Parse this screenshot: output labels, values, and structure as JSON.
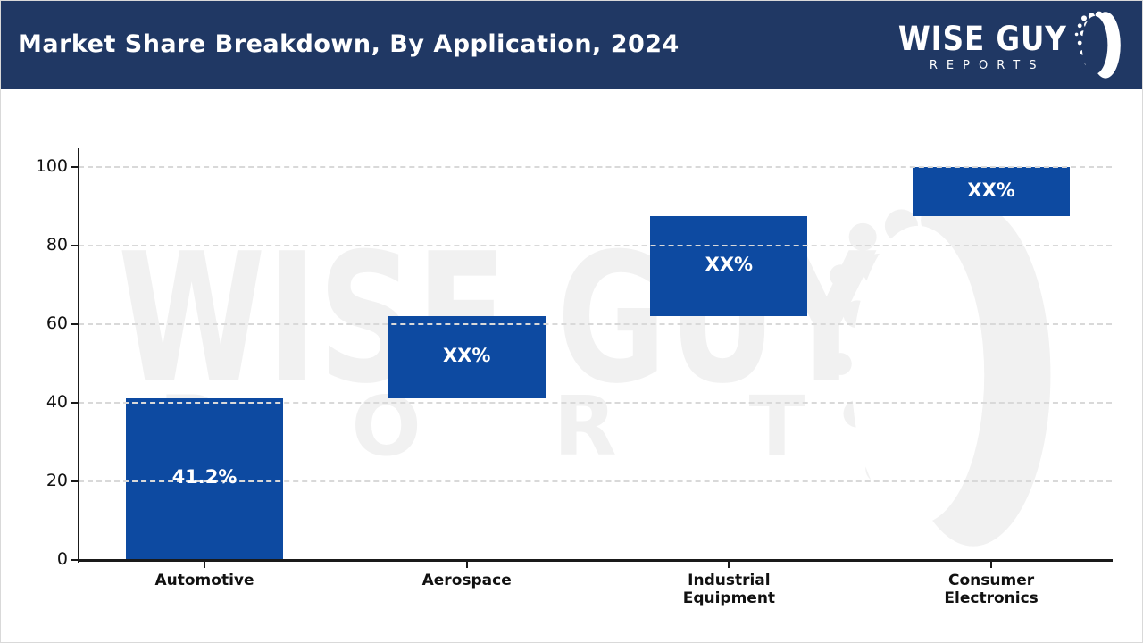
{
  "header": {
    "title": "Market Share Breakdown, By Application, 2024",
    "logo": {
      "line1": "WISE GUY",
      "line2": "REPORTS",
      "icon": "dotted-head-icon"
    }
  },
  "watermark": {
    "line1": "WISE GUY",
    "line2": "P O R T S",
    "icon": "dotted-head-watermark"
  },
  "colors": {
    "header_background": "#203864",
    "bar_blue": "#0d4aa1",
    "gridline_gray": "#d9d9d9",
    "axis_black": "#1a1a1a",
    "watermark_gray": "#f1f1f1",
    "title_text": "#ffffff"
  },
  "chart_data": {
    "type": "bar",
    "subtype": "waterfall",
    "title": "Market Share Breakdown, By Application, 2024",
    "xlabel": "",
    "ylabel": "",
    "ylim": [
      0,
      105
    ],
    "y_ticks": [
      0,
      20,
      40,
      60,
      80,
      100
    ],
    "grid": "horizontal dashed, drawn over bars",
    "legend": "none",
    "categories": [
      "Automotive",
      "Aerospace",
      "Industrial Equipment",
      "Consumer Electronics"
    ],
    "bar_color": "#0d4aa1",
    "value_label_color": "#ffffff",
    "segments": [
      {
        "label": "Automotive",
        "start": 0,
        "end": 41.2,
        "value_label": "41.2%"
      },
      {
        "label": "Aerospace",
        "start": 41.2,
        "end": 62,
        "value_label": "XX%"
      },
      {
        "label": "Industrial Equipment",
        "start": 62,
        "end": 87.5,
        "value_label": "XX%"
      },
      {
        "label": "Consumer Electronics",
        "start": 87.5,
        "end": 100,
        "value_label": "XX%"
      }
    ]
  }
}
